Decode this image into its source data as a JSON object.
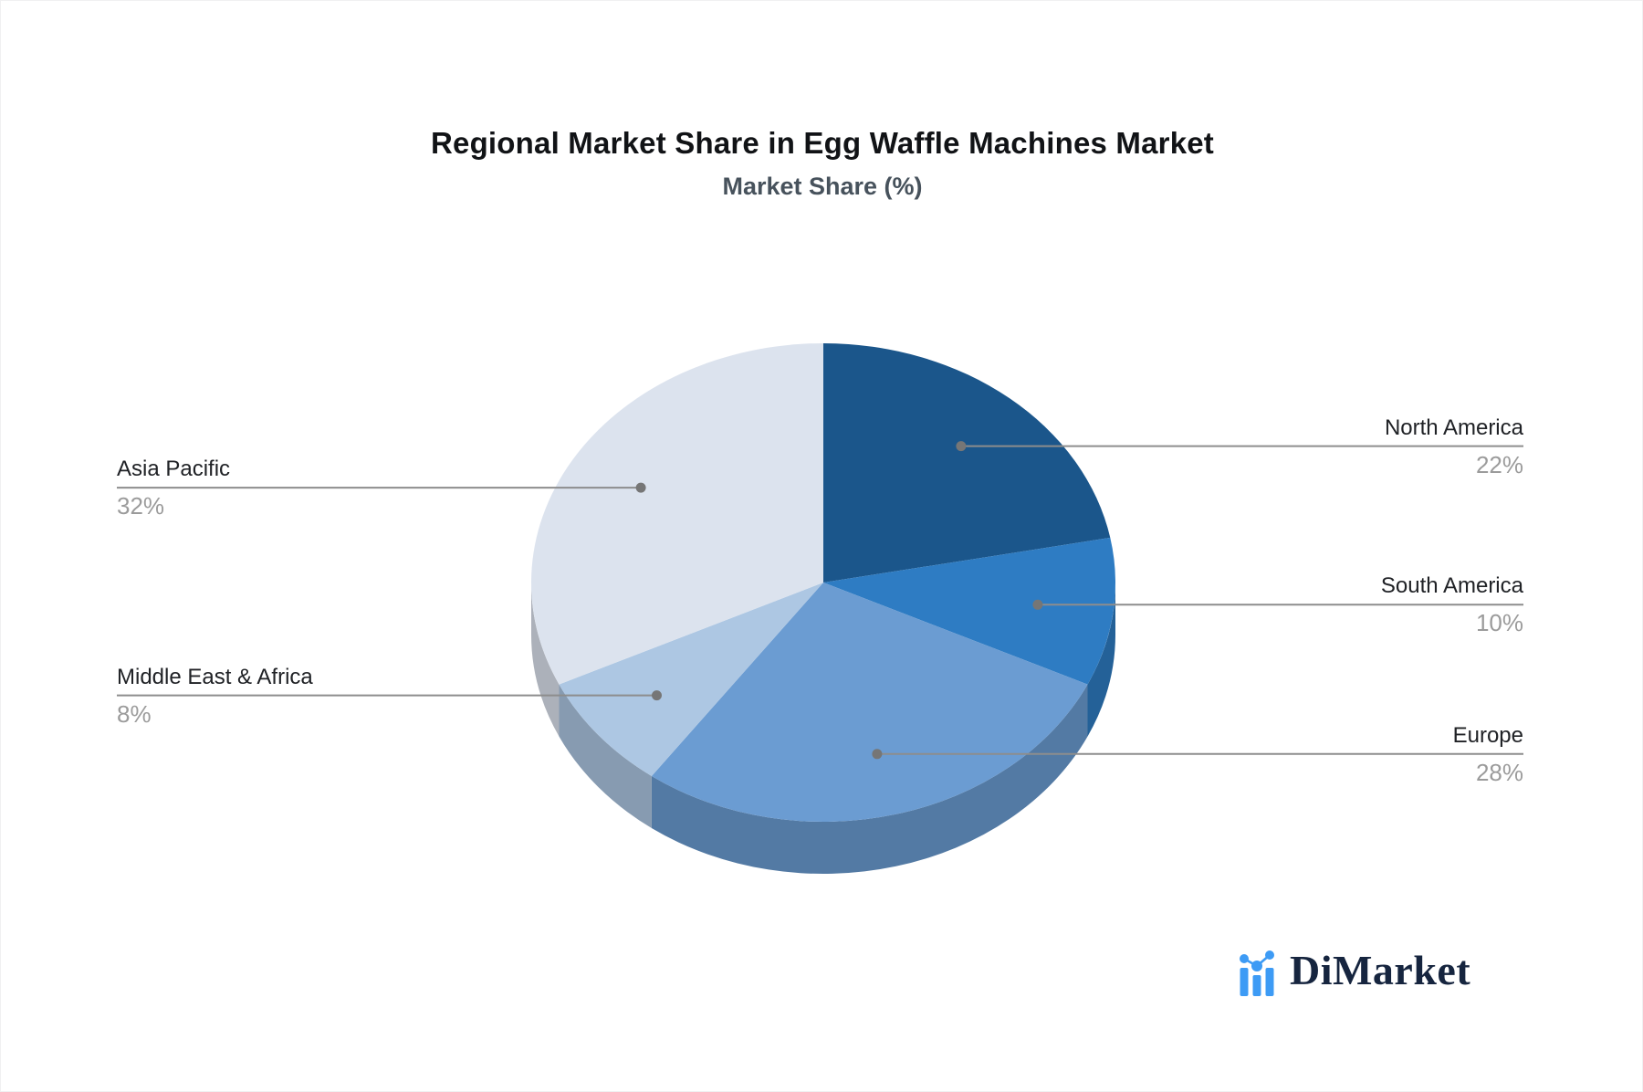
{
  "header": {
    "title": "Regional Market Share in Egg Waffle Machines Market",
    "subtitle": "Market Share (%)"
  },
  "chart_data": {
    "type": "pie",
    "style": "3d-pie",
    "title": "Regional Market Share in Egg Waffle Machines Market",
    "subtitle": "Market Share (%)",
    "unit": "%",
    "start_angle": "12-o-clock",
    "direction": "clockwise",
    "categories": [
      "North America",
      "South America",
      "Europe",
      "Middle East & Africa",
      "Asia Pacific"
    ],
    "values": [
      22,
      10,
      28,
      8,
      32
    ],
    "slices": [
      {
        "label": "North America",
        "value": 22,
        "pct": "22%",
        "color": "#1b568b",
        "callout_side": "right"
      },
      {
        "label": "South America",
        "value": 10,
        "pct": "10%",
        "color": "#2e7cc3",
        "callout_side": "right"
      },
      {
        "label": "Europe",
        "value": 28,
        "pct": "28%",
        "color": "#6b9cd2",
        "callout_side": "right"
      },
      {
        "label": "Middle East & Africa",
        "value": 8,
        "pct": "8%",
        "color": "#adc7e3",
        "callout_side": "left"
      },
      {
        "label": "Asia Pacific",
        "value": 32,
        "pct": "32%",
        "color": "#dce3ee",
        "callout_side": "left"
      }
    ],
    "label_text_color": "#202226",
    "value_text_color": "#9b9b9b",
    "leader_line_color": "#8d8d8d",
    "leader_dot_color": "#767676",
    "legend": "none"
  },
  "branding": {
    "logo_text": "DiMarket",
    "logo_icon": "dimarket-bar-chart-logo-icon",
    "logo_icon_color": "#3d9bf5",
    "logo_text_color": "#16253f"
  }
}
